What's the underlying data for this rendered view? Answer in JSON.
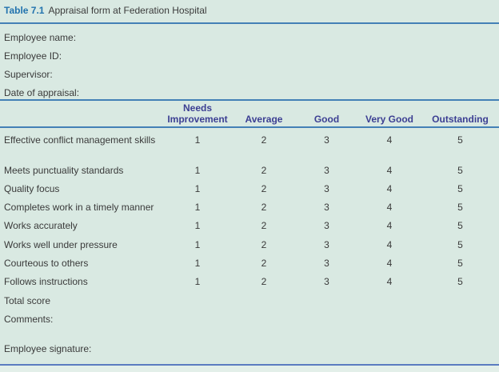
{
  "title": {
    "prefix": "Table 7.1",
    "text": "Appraisal form at Federation Hospital"
  },
  "fields": {
    "employee_name": "Employee name:",
    "employee_id": "Employee ID:",
    "supervisor": "Supervisor:",
    "date_of_appraisal": "Date of appraisal:"
  },
  "table": {
    "columns": [
      "Needs Improvement",
      "Average",
      "Good",
      "Very Good",
      "Outstanding"
    ],
    "rows": [
      {
        "label": "Effective conflict management skills",
        "values": [
          "1",
          "2",
          "3",
          "4",
          "5"
        ]
      },
      {
        "label": "Meets punctuality standards",
        "values": [
          "1",
          "2",
          "3",
          "4",
          "5"
        ]
      },
      {
        "label": "Quality focus",
        "values": [
          "1",
          "2",
          "3",
          "4",
          "5"
        ]
      },
      {
        "label": "Completes work in a timely manner",
        "values": [
          "1",
          "2",
          "3",
          "4",
          "5"
        ]
      },
      {
        "label": "Works accurately",
        "values": [
          "1",
          "2",
          "3",
          "4",
          "5"
        ]
      },
      {
        "label": "Works well under pressure",
        "values": [
          "1",
          "2",
          "3",
          "4",
          "5"
        ]
      },
      {
        "label": "Courteous to others",
        "values": [
          "1",
          "2",
          "3",
          "4",
          "5"
        ]
      },
      {
        "label": "Follows instructions",
        "values": [
          "1",
          "2",
          "3",
          "4",
          "5"
        ]
      }
    ],
    "total_label": "Total score",
    "comments_label": "Comments:"
  },
  "signature_label": "Employee signature:",
  "colors": {
    "background": "#d9e9e2",
    "rule_blue": "#4480b6",
    "bottom_rule_blue": "#5b7cc0",
    "title_blue": "#2273ae",
    "header_indigo": "#3c3f93",
    "body_text": "#3a3a3a"
  }
}
